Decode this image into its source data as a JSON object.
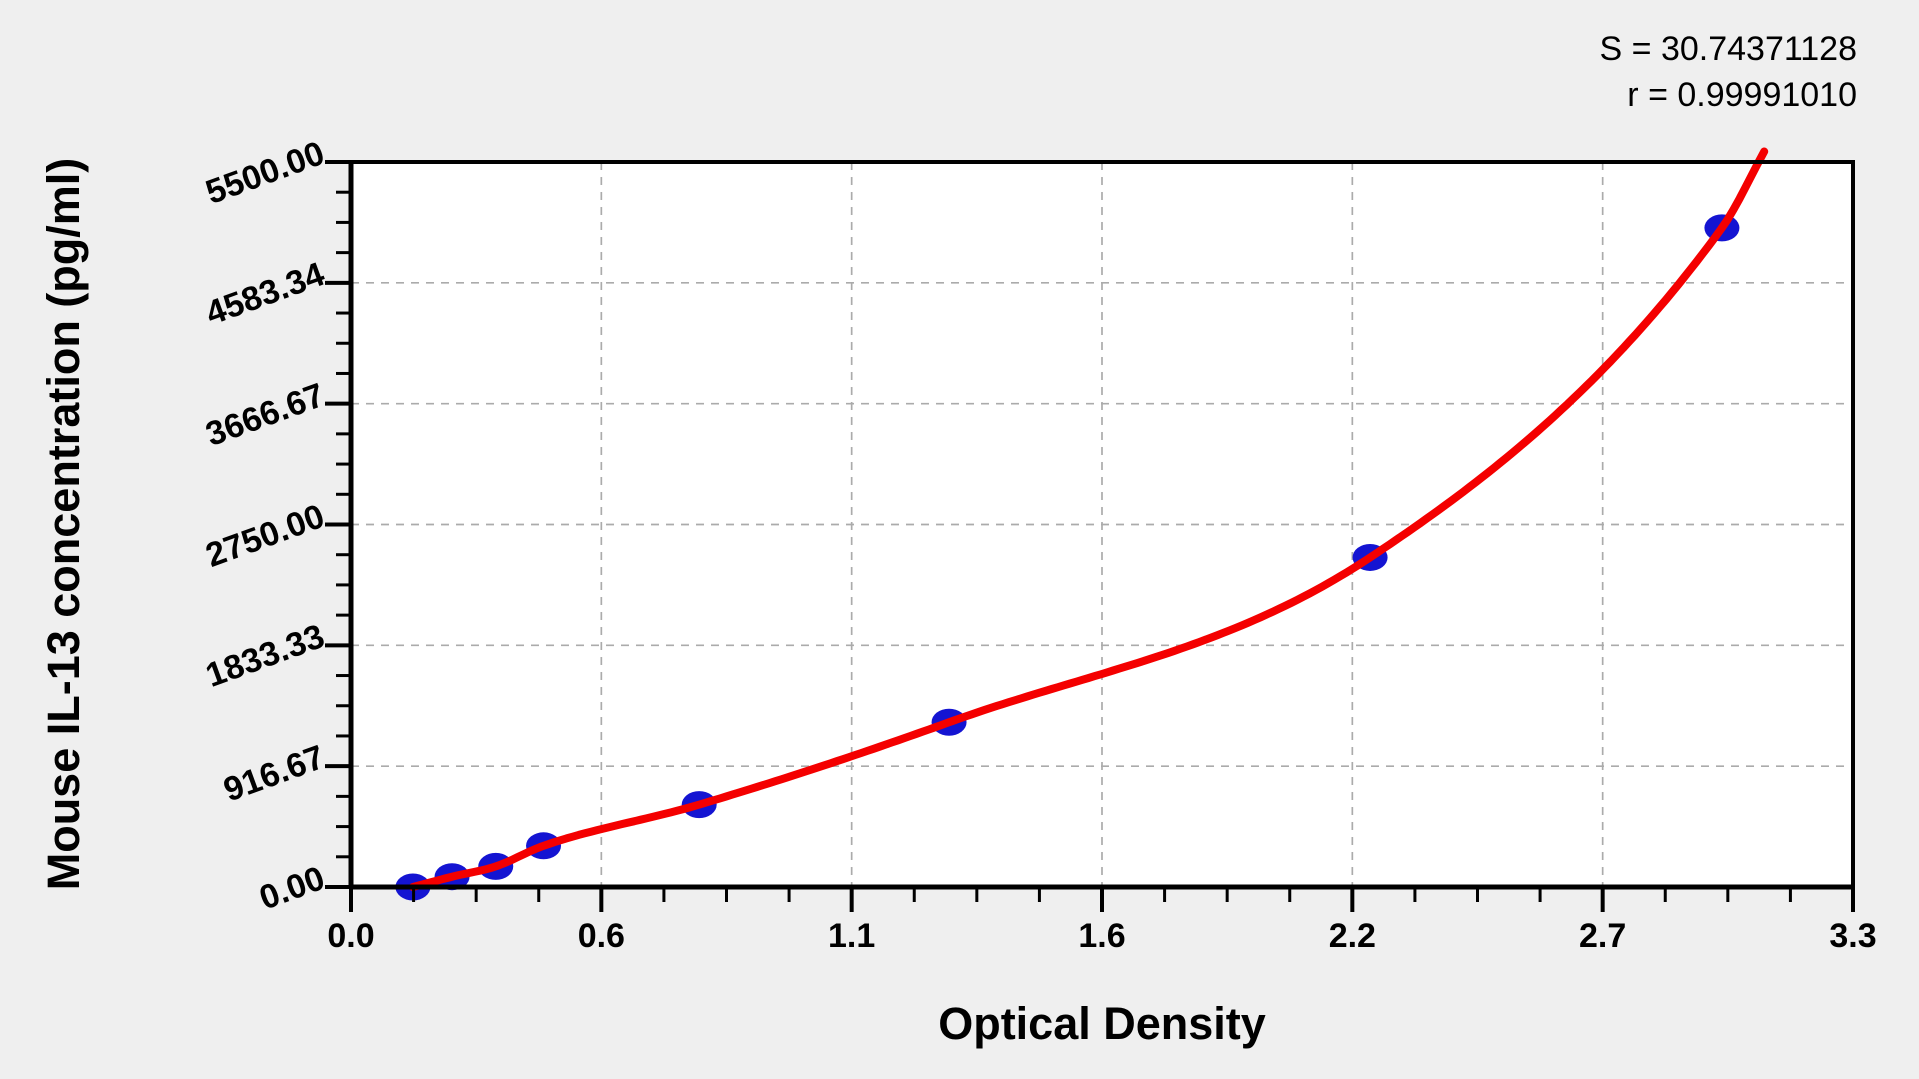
{
  "annotation": {
    "s_line": "S = 30.74371128",
    "r_line": "r = 0.99991010"
  },
  "chart_data": {
    "type": "scatter",
    "title": "",
    "xlabel": "Optical Density",
    "ylabel": "Mouse IL-13 concentration (pg/ml)",
    "xlim": [
      0,
      3.3
    ],
    "ylim": [
      0,
      5500
    ],
    "x_tick_values": [
      0,
      0.55,
      1.1,
      1.65,
      2.2,
      2.75,
      3.3
    ],
    "x_tick_labels": [
      "0.0",
      "0.6",
      "1.1",
      "1.6",
      "2.2",
      "2.7",
      "3.3"
    ],
    "y_tick_values": [
      0,
      916.67,
      1833.33,
      2750.0,
      3666.67,
      4583.34,
      5500.0
    ],
    "y_tick_labels": [
      "0.00",
      "916.67",
      "1833.33",
      "2750.00",
      "3666.67",
      "4583.34",
      "5500.00"
    ],
    "minor_tick_divisions": 4,
    "grid": "dashed-major",
    "legend": "none",
    "series": [
      {
        "name": "standard-points",
        "type": "scatter",
        "marker": "ellipse",
        "color": "#1414d2",
        "points_od_conc": [
          [
            0.136,
            0
          ],
          [
            0.222,
            78.13
          ],
          [
            0.318,
            156.25
          ],
          [
            0.423,
            312.5
          ],
          [
            0.765,
            625
          ],
          [
            1.314,
            1250
          ],
          [
            2.239,
            2500
          ],
          [
            3.012,
            5000
          ]
        ]
      },
      {
        "name": "fitted-curve",
        "type": "line",
        "color": "#f40000",
        "points_od_conc": [
          [
            0.136,
            0
          ],
          [
            0.222,
            78.13
          ],
          [
            0.318,
            156.25
          ],
          [
            0.423,
            312.5
          ],
          [
            0.765,
            625
          ],
          [
            1.314,
            1250
          ],
          [
            2.239,
            2500
          ],
          [
            3.012,
            5000
          ],
          [
            3.105,
            5580
          ]
        ]
      }
    ],
    "fit_statistics": {
      "S": 30.74371128,
      "r": 0.9999101
    }
  },
  "colors": {
    "background": "#efefef",
    "plot_background": "#ffffff",
    "axis": "#000000",
    "grid": "#ababab",
    "curve": "#f40000",
    "marker": "#1414d2",
    "text": "#000000"
  }
}
